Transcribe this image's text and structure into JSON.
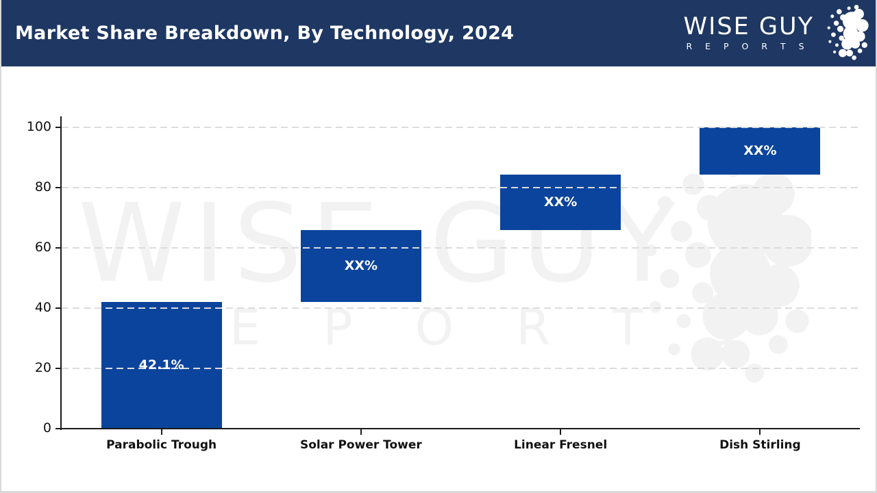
{
  "header": {
    "title": "Market Share Breakdown, By Technology, 2024",
    "logo": {
      "line1": "WISE GUY",
      "line2": "R E P O R T S"
    }
  },
  "watermark": {
    "line1": "WISE GUY",
    "line2": "R E P O R T S"
  },
  "colors": {
    "header_bg": "#1e3763",
    "bar": "#0b449c",
    "grid": "#dcdcdc",
    "watermark": "#f2f2f2",
    "axis": "#1a1a1a",
    "bar_label_text": "#ffffff",
    "title_text": "#ffffff"
  },
  "chart_data": {
    "type": "bar",
    "subtype": "waterfall-stacked-percentage",
    "title": "Market Share Breakdown, By Technology, 2024",
    "categories": [
      "Parabolic Trough",
      "Solar Power Tower",
      "Linear Fresnel",
      "Dish Stirling"
    ],
    "segments": [
      {
        "category": "Parabolic Trough",
        "label": "42.1%",
        "start": 0,
        "end": 42.1,
        "value": 42.1
      },
      {
        "category": "Solar Power Tower",
        "label": "XX%",
        "start": 42.1,
        "end": 65.9,
        "value": 23.8
      },
      {
        "category": "Linear Fresnel",
        "label": "XX%",
        "start": 65.9,
        "end": 84.3,
        "value": 18.4
      },
      {
        "category": "Dish Stirling",
        "label": "XX%",
        "start": 84.3,
        "end": 100.0,
        "value": 15.7
      }
    ],
    "yticks": [
      0,
      20,
      40,
      60,
      80,
      100
    ],
    "ylim": [
      0,
      104
    ],
    "xlabel": "",
    "ylabel": "",
    "grid": "horizontal-dashed-over-bars",
    "legend": "none"
  }
}
